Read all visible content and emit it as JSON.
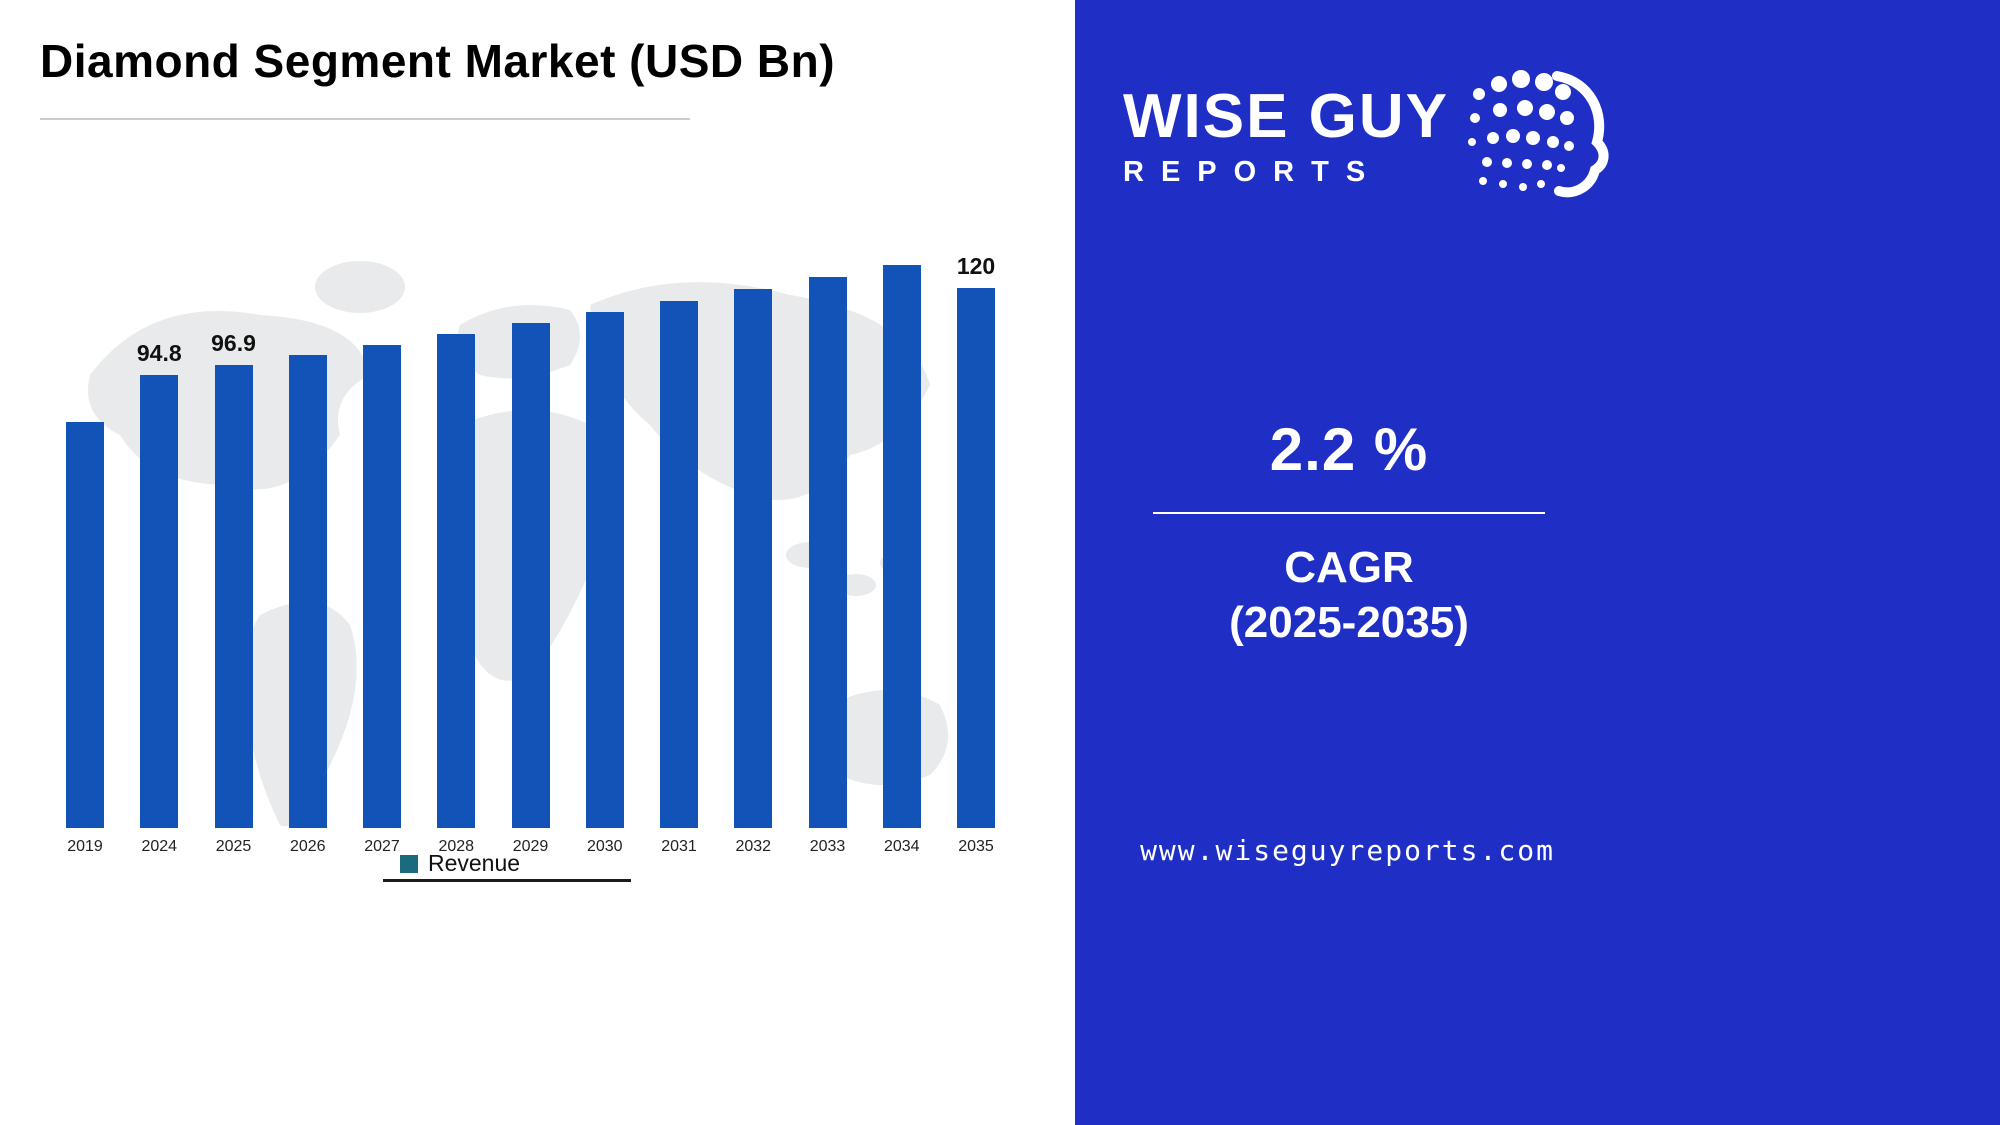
{
  "header": {
    "title": "Diamond Segment Market (USD Bn)"
  },
  "brand": {
    "logo_top": "WISE GUY",
    "logo_bottom": "REPORTS",
    "stat_value": "2.2 %",
    "stat_label_line1": "CAGR",
    "stat_label_line2": "(2025-2035)",
    "website": "www.wiseguyreports.com"
  },
  "colors": {
    "panel_blue": "#1f2fc5",
    "bar_blue": "#1253b8",
    "legend_swatch_teal": "#1b6a7e",
    "map_gray": "#e8eaec",
    "divider_gray": "#cccccc"
  },
  "chart_data": {
    "type": "bar",
    "title": "Diamond Segment Market (USD Bn)",
    "xlabel": "",
    "ylabel": "",
    "categories": [
      "2019",
      "2024",
      "2025",
      "2026",
      "2027",
      "2028",
      "2029",
      "2030",
      "2031",
      "2032",
      "2033",
      "2034",
      "2035"
    ],
    "values": [
      85,
      94.8,
      96.9,
      99,
      101.2,
      103.4,
      105.7,
      108,
      110.4,
      112.9,
      115.4,
      117.9,
      120
    ],
    "data_labels": {
      "2024": "94.8",
      "2025": "96.9",
      "2035": "120"
    },
    "ylim": [
      0,
      120
    ],
    "grid": false,
    "legend_position": "bottom-center",
    "legend_entries": [
      "Revenue"
    ],
    "bar_color": "#1253b8",
    "unit": "USD Bn"
  }
}
